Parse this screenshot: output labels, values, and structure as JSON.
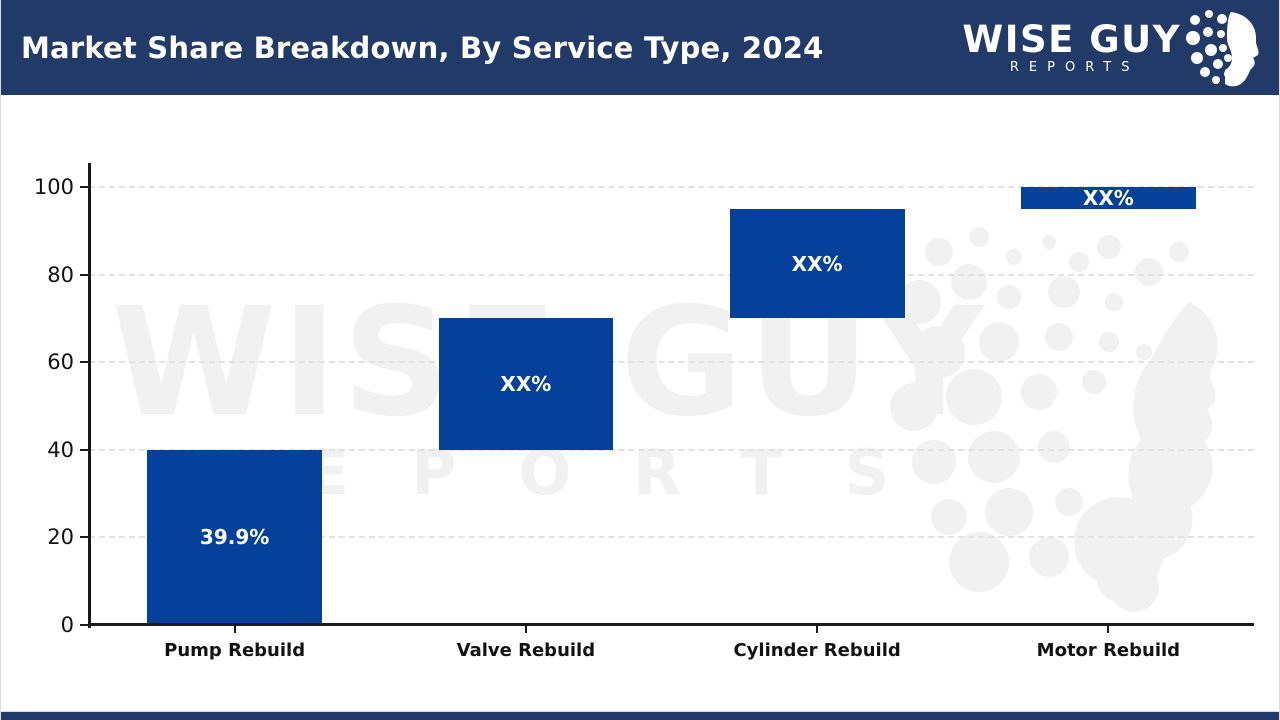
{
  "header": {
    "title": "Market Share Breakdown, By Service Type, 2024",
    "brand_line1": "WISE GUY",
    "brand_line2": "REPORTS"
  },
  "watermark": {
    "line1": "WISE GUY",
    "line2": "REPORTS"
  },
  "chart_data": {
    "type": "bar",
    "subtype": "waterfall",
    "title": "Market Share Breakdown, By Service Type, 2024",
    "categories": [
      "Pump Rebuild",
      "Valve Rebuild",
      "Cylinder Rebuild",
      "Motor Rebuild"
    ],
    "segments": [
      {
        "category": "Pump Rebuild",
        "start": 0,
        "end": 39.9,
        "label": "39.9%"
      },
      {
        "category": "Valve Rebuild",
        "start": 40,
        "end": 70,
        "label": "XX%"
      },
      {
        "category": "Cylinder Rebuild",
        "start": 70,
        "end": 95,
        "label": "XX%"
      },
      {
        "category": "Motor Rebuild",
        "start": 95,
        "end": 100,
        "label": "XX%"
      }
    ],
    "yticks": [
      0,
      20,
      40,
      60,
      80,
      100
    ],
    "ylim": [
      0,
      105
    ],
    "xlabel": "",
    "ylabel": "",
    "grid": "horizontal-dashed",
    "legend": "none",
    "bar_color": "#05419a",
    "bar_label_color": "#ffffff"
  },
  "colors": {
    "header_bg": "#213a68",
    "footer_bg": "#213a68",
    "bar": "#05419a",
    "axis": "#191919",
    "gridline": "#e2e2e2",
    "watermark": "#f1f1f1"
  }
}
